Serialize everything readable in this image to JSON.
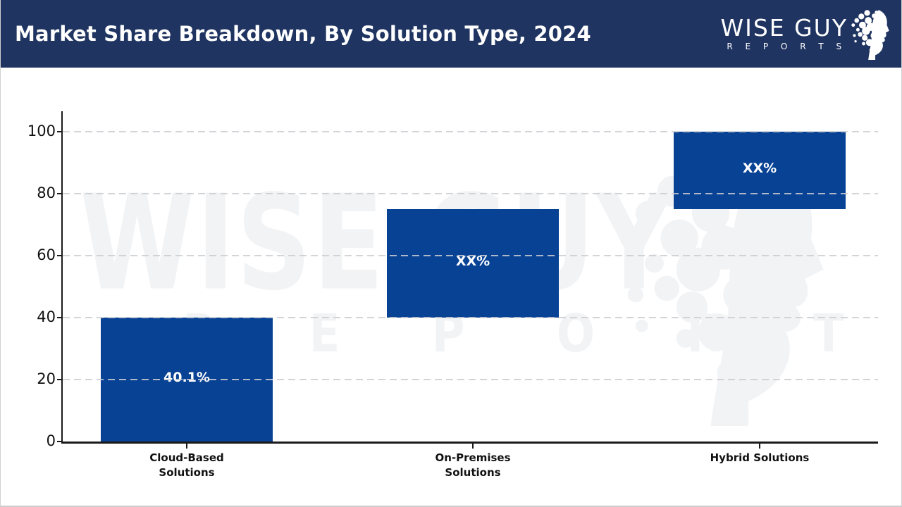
{
  "header": {
    "title": "Market Share Breakdown, By Solution Type, 2024",
    "background_color": "#1f3461",
    "logo": {
      "line1": "WISE GUY",
      "line2": "R E P O R T S"
    }
  },
  "watermark": {
    "line1": "WISE GUY",
    "line2": "R E P O R T S"
  },
  "chart_data": {
    "type": "bar",
    "subtype": "stacked-waterfall",
    "title": "Market Share Breakdown, By Solution Type, 2024",
    "categories": [
      [
        "Cloud-Based",
        "Solutions"
      ],
      [
        "On-Premises",
        "Solutions"
      ],
      [
        "Hybrid Solutions"
      ]
    ],
    "segments": [
      {
        "category": "Cloud-Based Solutions",
        "start": 0,
        "end": 40.1,
        "label": "40.1%"
      },
      {
        "category": "On-Premises Solutions",
        "start": 40.1,
        "end": 75,
        "label": "XX%"
      },
      {
        "category": "Hybrid Solutions",
        "start": 75,
        "end": 100,
        "label": "XX%"
      }
    ],
    "ytick_labels": [
      "0",
      "20",
      "40",
      "60",
      "80",
      "100"
    ],
    "yticks": [
      0,
      20,
      40,
      60,
      80,
      100
    ],
    "ylim": [
      0,
      106
    ],
    "xlabel": "",
    "ylabel": "",
    "grid": "horizontal-dashed",
    "legend": "none",
    "bar_color": "#084294",
    "bar_label_color": "#ffffff",
    "grid_color": "#d4d4d4",
    "axis_color": "#1a1a1a"
  }
}
